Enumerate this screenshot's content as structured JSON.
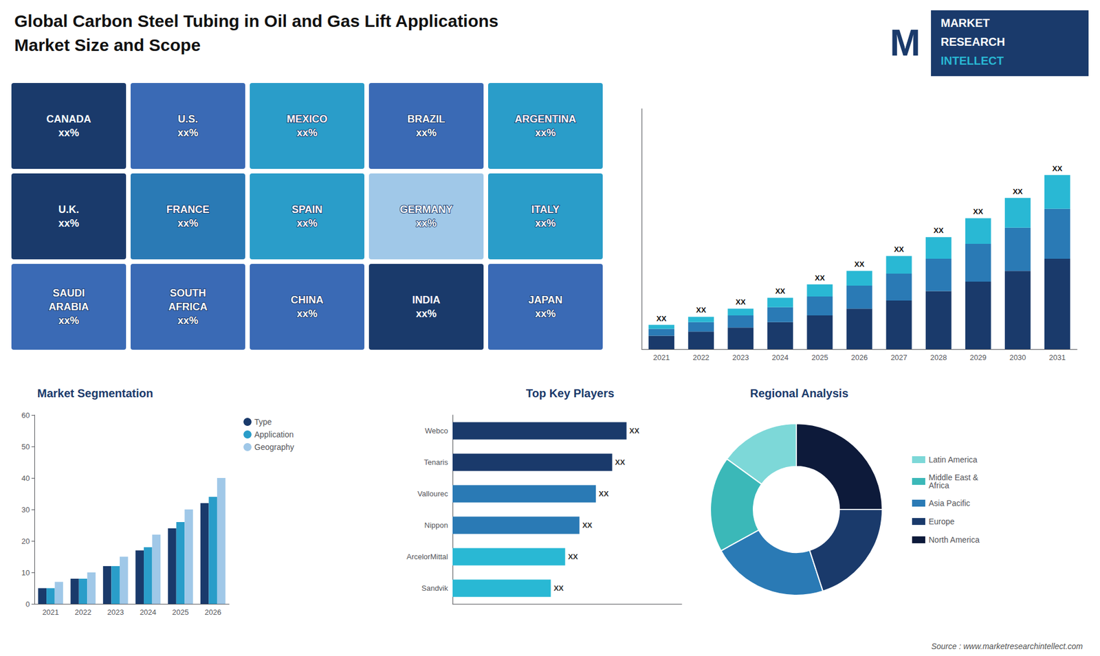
{
  "chart_data": [
    {
      "type": "map",
      "title": "Global Carbon Steel Tubing in Oil and Gas Lift Applications",
      "subtitle": "Market Size and Scope",
      "annotations": [
        "CANADA\nxx%",
        "U.S.\nxx%",
        "MEXICO\nxx%",
        "BRAZIL\nxx%",
        "ARGENTINA\nxx%",
        "U.K.\nxx%",
        "FRANCE\nxx%",
        "SPAIN\nxx%",
        "GERMANY\nxx%",
        "ITALY\nxx%",
        "SAUDI\nARABIA\nxx%",
        "SOUTH\nAFRICA\nxx%",
        "CHINA\nxx%",
        "INDIA\nxx%",
        "JAPAN\nxx%"
      ],
      "colors": [
        "#1a3a6b",
        "#3a6ab5",
        "#2a9dc9",
        "#3a6ab5",
        "#2a9dc9",
        "#1a3a6b",
        "#2a7ab5",
        "#2a9dc9",
        "#a0c8e8",
        "#2a9dc9",
        "#3a6ab5",
        "#3a6ab5",
        "#3a6ab5",
        "#1a3a6b",
        "#3a6ab5"
      ]
    },
    {
      "type": "logo",
      "annotations": [
        "M",
        "MARKET",
        "RESEARCH",
        "INTELLECT"
      ],
      "color": "#1a3a6b"
    },
    {
      "type": "bar",
      "stacked": true,
      "categories": [
        "2021",
        "2022",
        "2023",
        "2024",
        "2025",
        "2026",
        "2027",
        "2028",
        "2029",
        "2030",
        "2031"
      ],
      "series": [
        {
          "color": "#1a3a6b",
          "values": [
            1,
            1.3,
            1.6,
            2.0,
            2.5,
            3.0,
            3.6,
            4.3,
            5.0,
            5.8,
            6.7
          ]
        },
        {
          "color": "#2a7ab5",
          "values": [
            0.5,
            0.7,
            0.9,
            1.1,
            1.4,
            1.7,
            2.0,
            2.4,
            2.8,
            3.2,
            3.7
          ]
        },
        {
          "color": "#29b8d4",
          "values": [
            0.3,
            0.4,
            0.5,
            0.7,
            0.9,
            1.1,
            1.3,
            1.6,
            1.9,
            2.2,
            2.5
          ],
          "value_labels": [
            "XX",
            "XX",
            "XX",
            "XX",
            "XX",
            "XX",
            "XX",
            "XX",
            "XX",
            "XX",
            "XX"
          ]
        }
      ],
      "ylim": [
        0,
        17.802
      ],
      "tick_labels": "x",
      "grid": false
    },
    {
      "type": "bar",
      "title": "Market Segmentation",
      "categories": [
        "2021",
        "2022",
        "2023",
        "2024",
        "2025",
        "2026"
      ],
      "series": [
        {
          "name": "Type",
          "color": "#1a3a6b",
          "values": [
            5,
            8,
            12,
            17,
            24,
            32
          ]
        },
        {
          "name": "Application",
          "color": "#2a9dc9",
          "values": [
            5,
            8,
            12,
            18,
            26,
            34
          ]
        },
        {
          "name": "Geography",
          "color": "#a0c8e8",
          "values": [
            7,
            10,
            15,
            22,
            30,
            40
          ]
        }
      ],
      "ylim": [
        0,
        60
      ],
      "yticks": [
        0,
        10,
        20,
        30,
        40,
        50,
        60
      ],
      "legend": "upper right",
      "grid": false
    },
    {
      "type": "bar",
      "orientation": "horizontal",
      "title": "Top Key Players",
      "categories": [
        "Webco",
        "Tenaris",
        "Vallourec",
        "Nippon",
        "ArcelorMittal",
        "Sandvik"
      ],
      "values": [
        0.85,
        0.78,
        0.7,
        0.62,
        0.55,
        0.48
      ],
      "value_labels": [
        "XX",
        "XX",
        "XX",
        "XX",
        "XX",
        "XX"
      ],
      "colors": [
        "#1a3a6b",
        "#1a3a6b",
        "#2a7ab5",
        "#2a7ab5",
        "#29b8d4",
        "#29b8d4"
      ],
      "xlim": [
        0,
        1.12
      ],
      "tick_labels": "y",
      "grid": false
    },
    {
      "type": "pie",
      "title": "Regional Analysis",
      "categories": [
        "Latin America",
        "Middle East &\nAfrica",
        "Asia Pacific",
        "Europe",
        "North America"
      ],
      "values": [
        15,
        18,
        22,
        20,
        25
      ],
      "colors": [
        "#7dd8d8",
        "#3bb8b8",
        "#2a7ab5",
        "#1a3a6b",
        "#0d1a3a"
      ],
      "legend": "right",
      "annotations": [
        "Source : www.marketresearchintellect.com"
      ]
    }
  ]
}
